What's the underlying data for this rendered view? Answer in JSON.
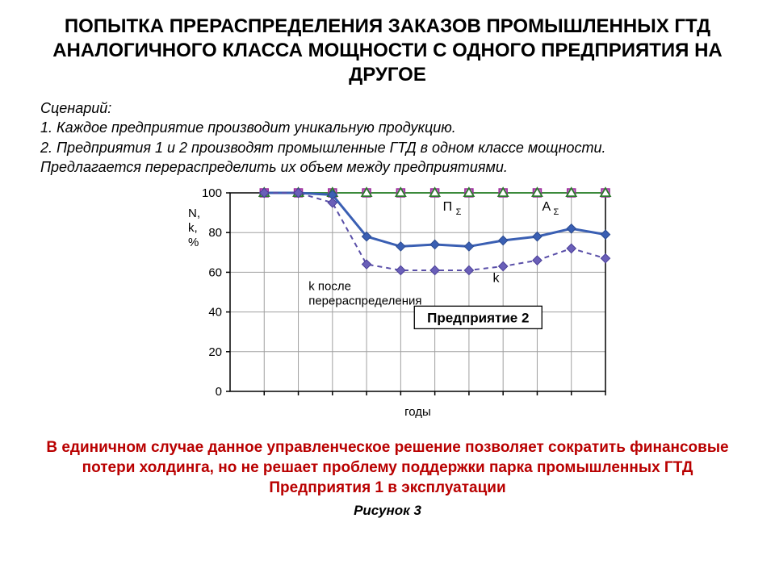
{
  "title": "ПОПЫТКА ПРЕРАСПРЕДЕЛЕНИЯ ЗАКАЗОВ ПРОМЫШЛЕННЫХ ГТД АНАЛОГИЧНОГО КЛАССА МОЩНОСТИ С ОДНОГО ПРЕДПРИЯТИЯ НА ДРУГОЕ",
  "scenario_heading": "Сценарий:",
  "scenario_lines": [
    "1. Каждое предприятие производит уникальную продукцию.",
    "2. Предприятия 1 и 2 производят промышленные ГТД в одном классе мощности.",
    "Предлагается перераспределить их объем между предприятиями."
  ],
  "conclusion": "В единичном случае данное управленческое решение позволяет сократить финансовые потери холдинга, но не решает проблему поддержки парка промышленных ГТД Предприятия 1 в эксплуатации",
  "figure_caption": "Рисунок 3",
  "chart": {
    "type": "line",
    "y_axis_label": "N,\nk,\n%",
    "x_axis_label": "годы",
    "ylim": [
      0,
      100
    ],
    "xlim": [
      0,
      11
    ],
    "ytick_step": 20,
    "ytick_labels": [
      "0",
      "20",
      "40",
      "60",
      "80",
      "100"
    ],
    "grid_on": true,
    "background_color": "#ffffff",
    "grid_color": "#a0a0a0",
    "axis_color": "#000000",
    "tick_fontsize": 15,
    "label_fontsize": 15,
    "box_label": "Предприятие 2",
    "box_label_fontsize": 17,
    "annotations": {
      "pi_sigma": "П",
      "a_sigma": "А",
      "k": "k",
      "k_after": "k после\nперераспределения"
    },
    "series": [
      {
        "id": "P_sigma",
        "marker": "square",
        "marker_fill": "#d070d0",
        "marker_stroke": "#9b2e9b",
        "marker_size": 10,
        "line_color": "#3c8a3c",
        "line_width": 2,
        "dash": "none",
        "x": [
          1,
          2,
          3,
          4,
          5,
          6,
          7,
          8,
          9,
          10,
          11
        ],
        "y": [
          100,
          100,
          100,
          100,
          100,
          100,
          100,
          100,
          100,
          100,
          100
        ]
      },
      {
        "id": "A_sigma",
        "marker": "triangle",
        "marker_fill": "#ffffff",
        "marker_stroke": "#2e7a2e",
        "marker_size": 10,
        "line_color": "#3c8a3c",
        "line_width": 2,
        "dash": "none",
        "x": [
          1,
          2,
          3,
          4,
          5,
          6,
          7,
          8,
          9,
          10,
          11
        ],
        "y": [
          100,
          100,
          100,
          100,
          100,
          100,
          100,
          100,
          100,
          100,
          100
        ]
      },
      {
        "id": "k_after_redistribution",
        "marker": "diamond",
        "marker_fill": "#3a5fb3",
        "marker_stroke": "#2a4a90",
        "marker_size": 9,
        "line_color": "#3a5fb3",
        "line_width": 3,
        "dash": "none",
        "x": [
          1,
          2,
          3,
          4,
          5,
          6,
          7,
          8,
          9,
          10,
          11
        ],
        "y": [
          100,
          100,
          99,
          78,
          73,
          74,
          73,
          76,
          78,
          82,
          79
        ]
      },
      {
        "id": "k",
        "marker": "diamond",
        "marker_fill": "#6a5fb8",
        "marker_stroke": "#4a3f98",
        "marker_size": 9,
        "line_color": "#5a4fa8",
        "line_width": 2,
        "dash": "6,5",
        "x": [
          1,
          2,
          3,
          4,
          5,
          6,
          7,
          8,
          9,
          10,
          11
        ],
        "y": [
          100,
          100,
          95,
          64,
          61,
          61,
          61,
          63,
          66,
          72,
          67
        ]
      }
    ]
  }
}
